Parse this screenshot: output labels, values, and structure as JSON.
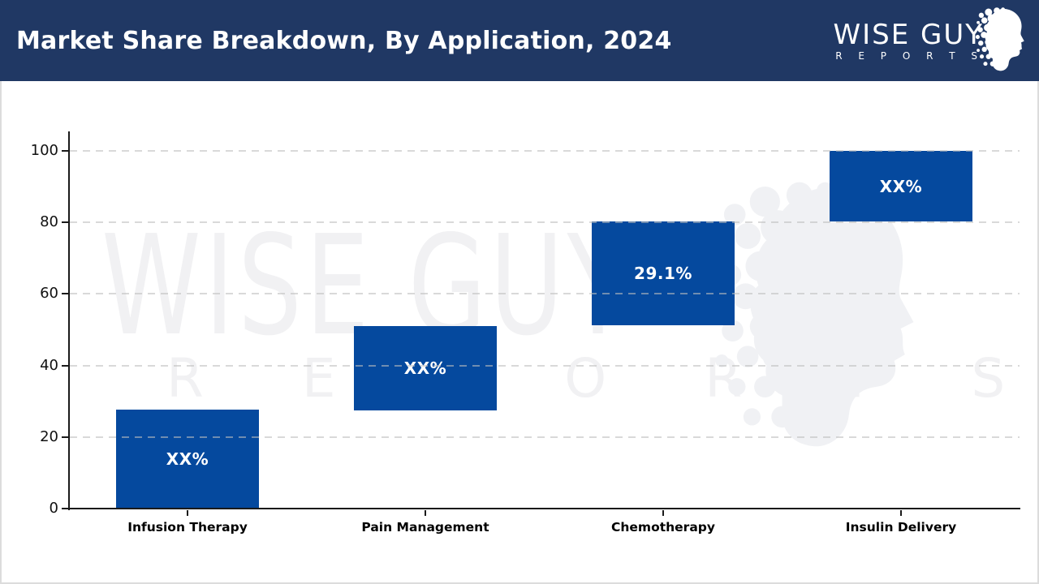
{
  "header": {
    "title": "Market Share Breakdown, By Application, 2024",
    "logo": {
      "brand": "WISE GUY",
      "tagline": "R E P O R T S"
    }
  },
  "watermark": {
    "brand": "WISE GUY",
    "tagline": "R E P O R T S"
  },
  "colors": {
    "header_bg": "#203864",
    "bar": "#05499e",
    "axis": "#1a1a1a",
    "grid_rgb": "190,190,190",
    "tick_label": "#111111",
    "bar_label": "#ffffff",
    "watermark": "#f1f1f3",
    "border": "#dcdcdc"
  },
  "chart_data": {
    "type": "bar",
    "variant": "waterfall",
    "title": "Market Share Breakdown, By Application, 2024",
    "categories": [
      "Infusion Therapy",
      "Pain Management",
      "Chemotherapy",
      "Insulin Delivery"
    ],
    "segments": [
      {
        "category": "Infusion Therapy",
        "start": 0,
        "end": 27.6,
        "value_label": "XX%"
      },
      {
        "category": "Pain Management",
        "start": 27.6,
        "end": 51.1,
        "value_label": "XX%"
      },
      {
        "category": "Chemotherapy",
        "start": 51.1,
        "end": 80.2,
        "value_label": "29.1%"
      },
      {
        "category": "Insulin Delivery",
        "start": 80.2,
        "end": 100,
        "value_label": "XX%"
      }
    ],
    "xlabel": "",
    "ylabel": "",
    "yticks": [
      0,
      20,
      40,
      60,
      80,
      100
    ],
    "ylim": [
      0,
      105
    ],
    "grid": "horizontal-dashed-over-bars",
    "legend": "none"
  }
}
